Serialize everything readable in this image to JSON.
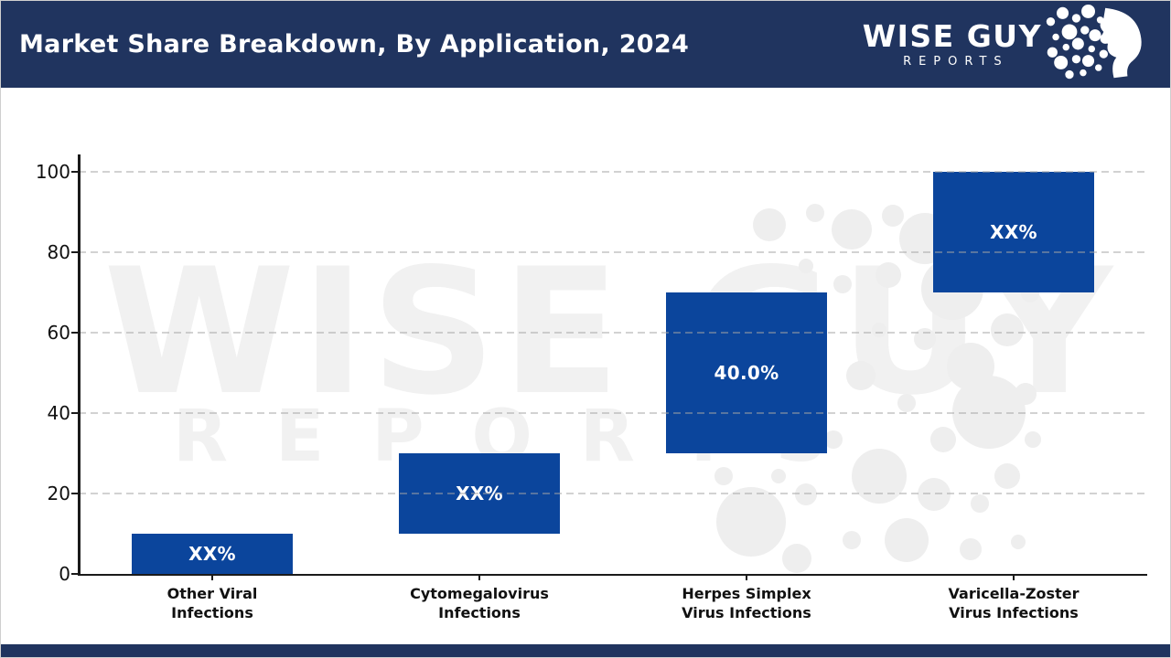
{
  "header": {
    "title": "Market Share Breakdown, By Application, 2024",
    "logo": {
      "line1": "WISE GUY",
      "line2": "REPORTS"
    }
  },
  "watermark": {
    "line1": "WISE GUY",
    "line2": "REPORTS"
  },
  "colors": {
    "header_bg": "#20345f",
    "footer_bg": "#20345f",
    "bar": "#0b459c",
    "value_label": "#ffffff",
    "watermark": "#f1f1f1",
    "axis": "#1a1a1a"
  },
  "chart_data": {
    "type": "bar",
    "variant": "floating-range-bars",
    "title": "Market Share Breakdown, By Application, 2024",
    "categories": [
      "Other Viral\nInfections",
      "Cytomegalovirus\nInfections",
      "Herpes Simplex\nVirus Infections",
      "Varicella-Zoster\nVirus Infections"
    ],
    "bars": [
      {
        "category": "Other Viral Infections",
        "start": 0,
        "end": 10,
        "label": "XX%"
      },
      {
        "category": "Cytomegalovirus Infections",
        "start": 10,
        "end": 30,
        "label": "XX%"
      },
      {
        "category": "Herpes Simplex Virus Infections",
        "start": 30,
        "end": 70,
        "label": "40.0%"
      },
      {
        "category": "Varicella-Zoster Virus Infections",
        "start": 70,
        "end": 100,
        "label": "XX%"
      }
    ],
    "xlabel": "",
    "ylabel": "",
    "ylim": [
      0,
      100
    ],
    "yticks": [
      0,
      20,
      40,
      60,
      80,
      100
    ],
    "grid": "dashed-horizontal-over-bars",
    "legend": "none"
  }
}
